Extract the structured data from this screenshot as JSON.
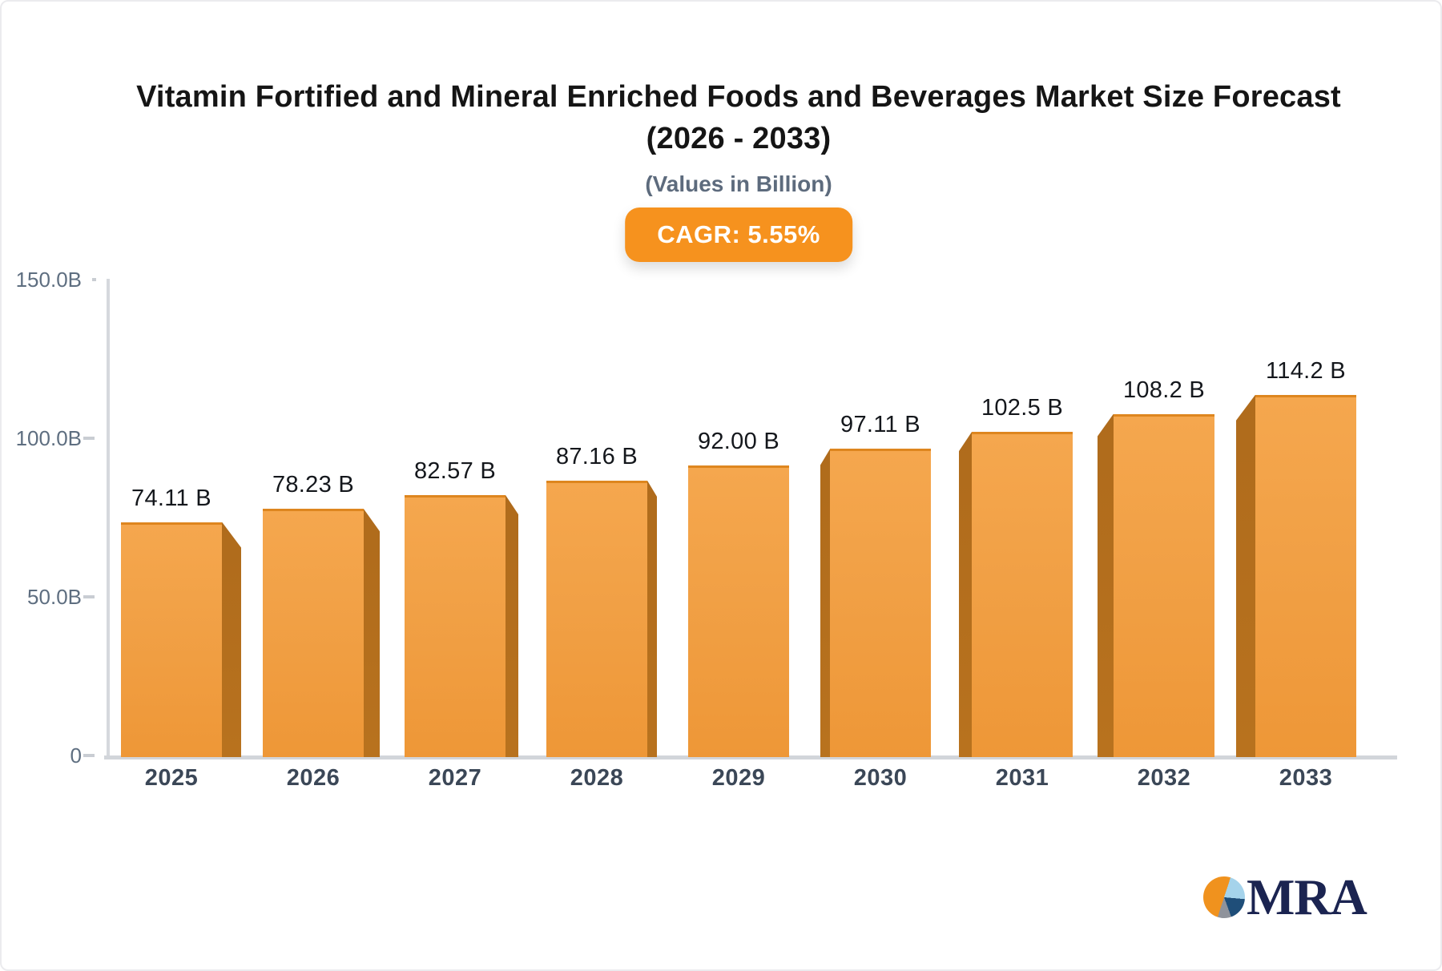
{
  "header": {
    "title_line1": "Vitamin Fortified and Mineral Enriched Foods and Beverages Market Size Forecast",
    "title_line2": "(2026 - 2033)",
    "subtitle": "(Values in Billion)",
    "cagr_label": "CAGR: 5.55%",
    "cagr_badge_color": "#F6921E"
  },
  "chart_data": {
    "type": "bar",
    "title": "Vitamin Fortified and Mineral Enriched Foods and Beverages Market Size Forecast (2026 - 2033)",
    "subtitle": "Values in Billion",
    "cagr": "5.55%",
    "categories": [
      "2025",
      "2026",
      "2027",
      "2028",
      "2029",
      "2030",
      "2031",
      "2032",
      "2033"
    ],
    "values": [
      74.11,
      78.23,
      82.57,
      87.16,
      92.0,
      97.11,
      102.5,
      108.2,
      114.2
    ],
    "value_labels": [
      "74.11 B",
      "78.23 B",
      "82.57 B",
      "87.16 B",
      "92.00 B",
      "97.11 B",
      "102.5 B",
      "108.2 B",
      "114.2 B"
    ],
    "xlabel": "",
    "ylabel": "",
    "ylim": [
      0,
      150
    ],
    "y_ticks": {
      "labels": [
        "0",
        "50.0B",
        "100.0B",
        "150.0B"
      ],
      "values": [
        0,
        50,
        100,
        150
      ]
    },
    "grid": false,
    "legend": false,
    "bar_colors": {
      "face_top": "#F5A74E",
      "face_bottom": "#EE9737",
      "top_edge": "#DE861F",
      "side_panel": "#B2701D"
    }
  },
  "logo": {
    "text": "MRA",
    "pie_colors": [
      "#F0921E",
      "#A5D3EB",
      "#1F4E79",
      "#8F939B"
    ],
    "text_color": "#1b2451"
  }
}
